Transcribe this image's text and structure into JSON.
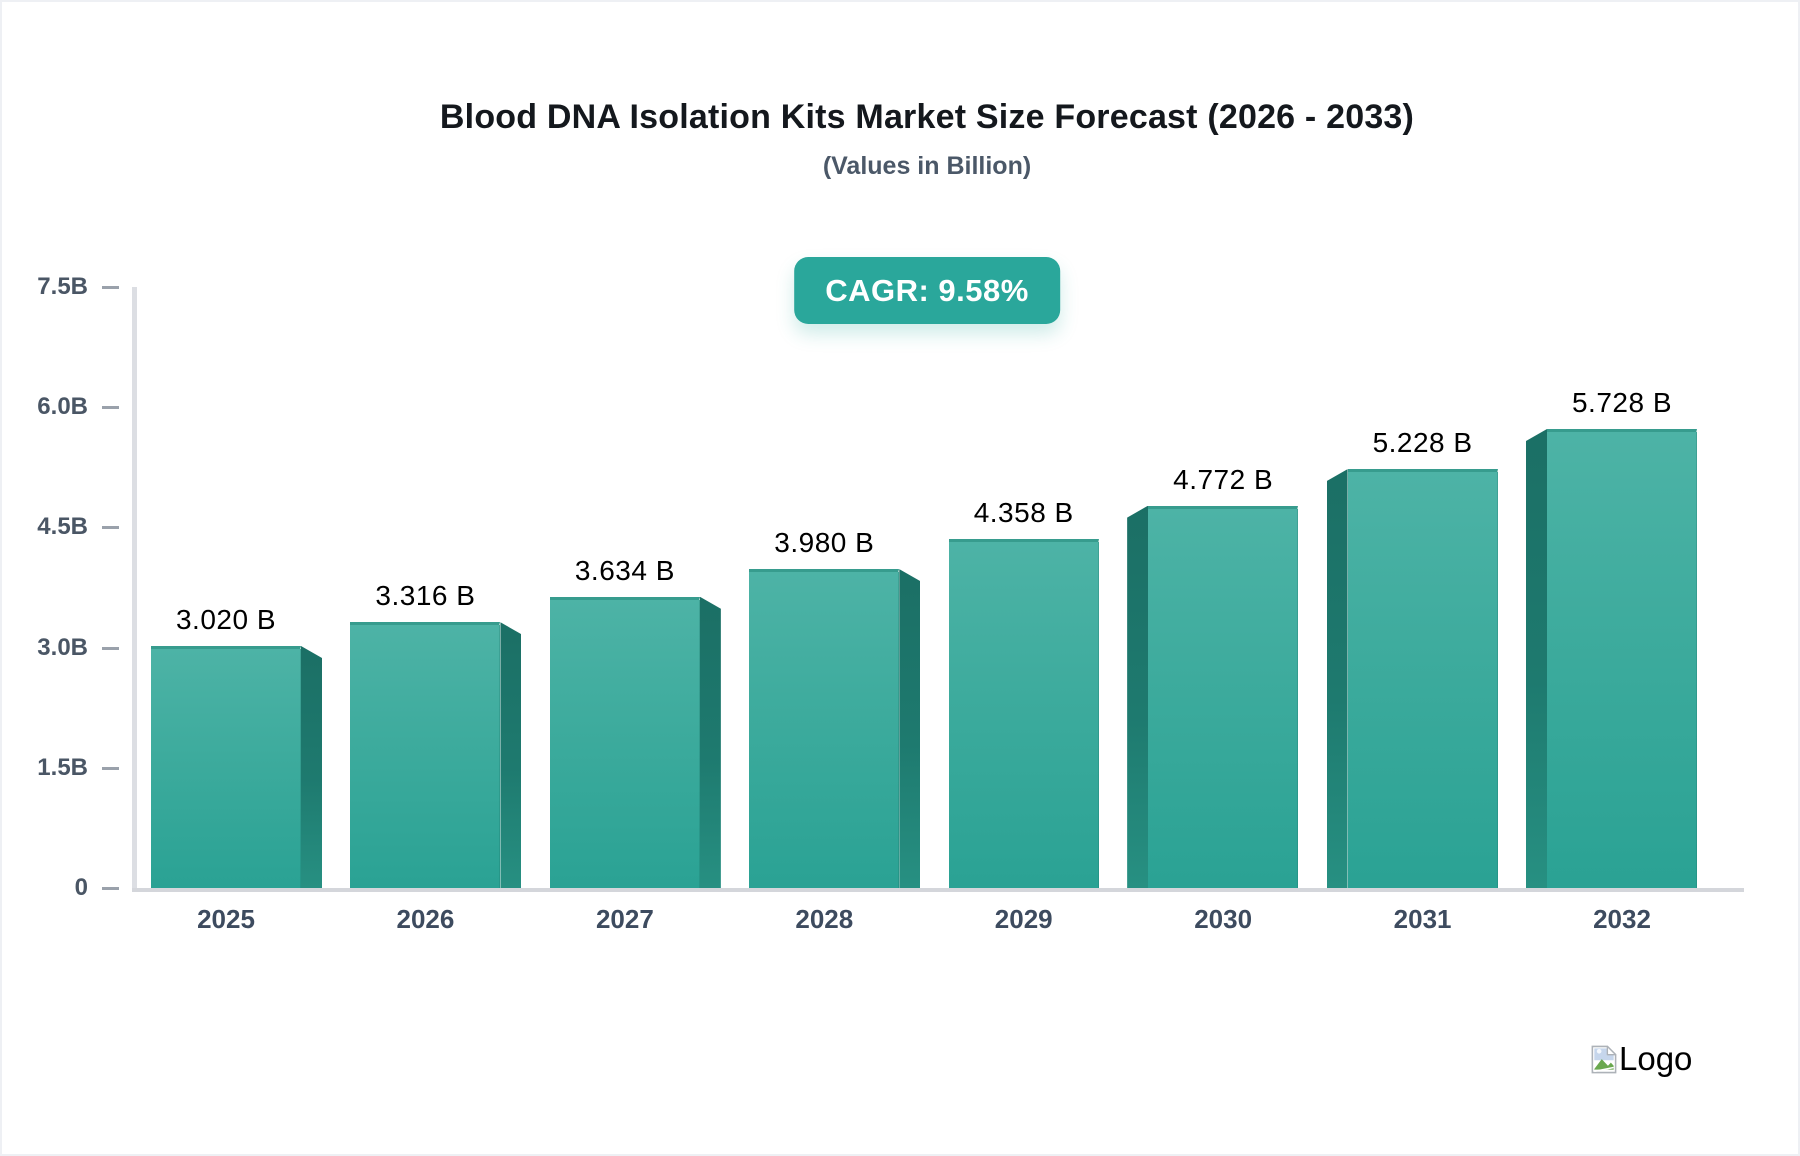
{
  "header": {
    "title": "Blood DNA Isolation Kits Market Size Forecast (2026 - 2033)",
    "subtitle": "(Values in Billion)",
    "cagr_badge": "CAGR: 9.58%"
  },
  "chart_data": {
    "type": "bar",
    "title": "Blood DNA Isolation Kits Market Size Forecast (2026 - 2033)",
    "subtitle": "(Values in Billion)",
    "annotation": "CAGR: 9.58%",
    "categories": [
      "2025",
      "2026",
      "2027",
      "2028",
      "2029",
      "2030",
      "2031",
      "2032"
    ],
    "values": [
      3.02,
      3.316,
      3.634,
      3.98,
      4.358,
      4.772,
      5.228,
      5.728
    ],
    "bar_labels": [
      "3.020 B",
      "3.316 B",
      "3.634 B",
      "3.980 B",
      "4.358 B",
      "4.772 B",
      "5.228 B",
      "5.728 B"
    ],
    "unit": "Billion",
    "xlabel": "",
    "ylabel": "",
    "ylim": [
      0,
      7.5
    ],
    "yticks": [
      {
        "label": "7.5B",
        "value": 7.5
      },
      {
        "label": "6.0B",
        "value": 6.0
      },
      {
        "label": "4.5B",
        "value": 4.5
      },
      {
        "label": "3.0B",
        "value": 3.0
      },
      {
        "label": "1.5B",
        "value": 1.5
      },
      {
        "label": "0",
        "value": 0
      }
    ],
    "grid": false,
    "legend": false,
    "style": "3d-bars",
    "colors": {
      "bar_front_top": "#4db3a6",
      "bar_front_bottom": "#2aa294",
      "bar_side": "#1e7a6f",
      "badge_bg": "#2aa79b",
      "badge_text": "#ffffff",
      "axis_line": "#d5d7dc",
      "tick_label": "#4a5665",
      "x_label": "#3d4b5f",
      "value_label": "#000000"
    }
  },
  "footer": {
    "logo_alt": "Logo"
  }
}
